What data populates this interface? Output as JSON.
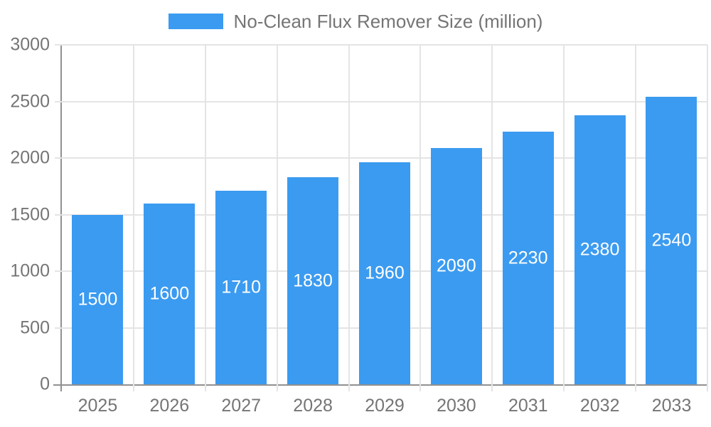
{
  "legend": {
    "label": "No-Clean Flux Remover Size (million)"
  },
  "chart_data": {
    "type": "bar",
    "title": "",
    "xlabel": "",
    "ylabel": "",
    "categories": [
      "2025",
      "2026",
      "2027",
      "2028",
      "2029",
      "2030",
      "2031",
      "2032",
      "2033"
    ],
    "values": [
      1500,
      1600,
      1710,
      1830,
      1960,
      2090,
      2230,
      2380,
      2540
    ],
    "series_name": "No-Clean Flux Remover Size (million)",
    "ylim": [
      0,
      3000
    ],
    "yticks": [
      0,
      500,
      1000,
      1500,
      2000,
      2500,
      3000
    ],
    "bar_value_labels_visible": true,
    "legend_position": "top-center",
    "grid": true,
    "colors": {
      "bar": "#3B9BF0",
      "bar_label_text": "#FFFFFF",
      "axis_text": "#757575",
      "grid_line": "#E4E4E4",
      "axis_line": "#919191",
      "background": "#FFFFFF"
    }
  }
}
